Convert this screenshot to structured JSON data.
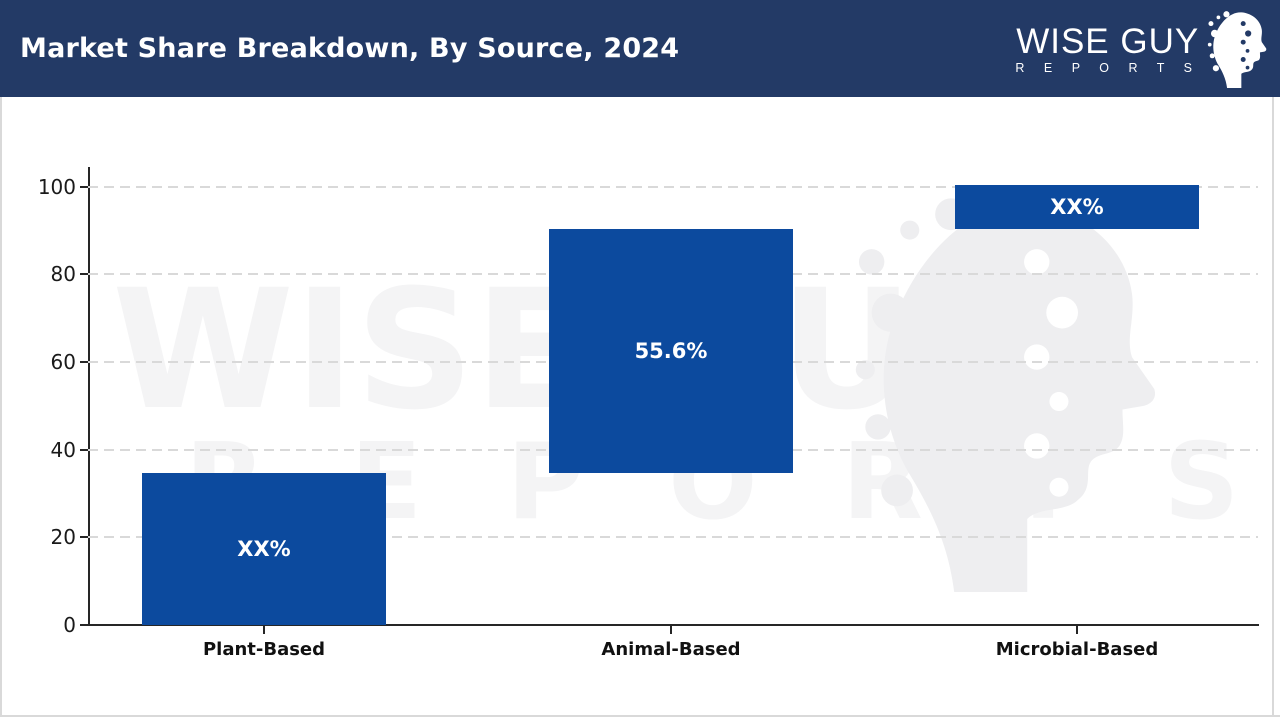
{
  "header": {
    "title": "Market Share Breakdown, By Source, 2024",
    "bg_color": "#233a66",
    "logo": {
      "line1": "WISE GUY",
      "line2": "R E P O R T S"
    }
  },
  "watermark": {
    "line1": "WISE GUY",
    "line2": "R E P O R T S"
  },
  "colors": {
    "header_bg": "#233a66",
    "bar": "#0c4a9e",
    "bar_label": "#ffffff",
    "gridline": "#d9d9d9",
    "axis": "#262626",
    "watermark": "#f4f4f5",
    "watermark_face": "#eeeef0",
    "card_border": "#d9d9d9"
  },
  "chart_data": {
    "type": "bar",
    "subtype": "floating-breakdown-waterfall",
    "title": "Market Share Breakdown, By Source, 2024",
    "categories": [
      "Plant-Based",
      "Animal-Based",
      "Microbial-Based"
    ],
    "segments": [
      {
        "category": "Plant-Based",
        "start": 0,
        "end": 34.7,
        "value": 34.7,
        "value_label": "XX%"
      },
      {
        "category": "Animal-Based",
        "start": 34.7,
        "end": 90.3,
        "value": 55.6,
        "value_label": "55.6%"
      },
      {
        "category": "Microbial-Based",
        "start": 90.3,
        "end": 100.3,
        "value": 10.0,
        "value_label": "XX%"
      }
    ],
    "yticks": [
      0,
      20,
      40,
      60,
      80,
      100
    ],
    "ylim": [
      0,
      104.5
    ],
    "xlabel": "",
    "ylabel": "",
    "grid": "horizontal-dashed",
    "legend": "none"
  }
}
